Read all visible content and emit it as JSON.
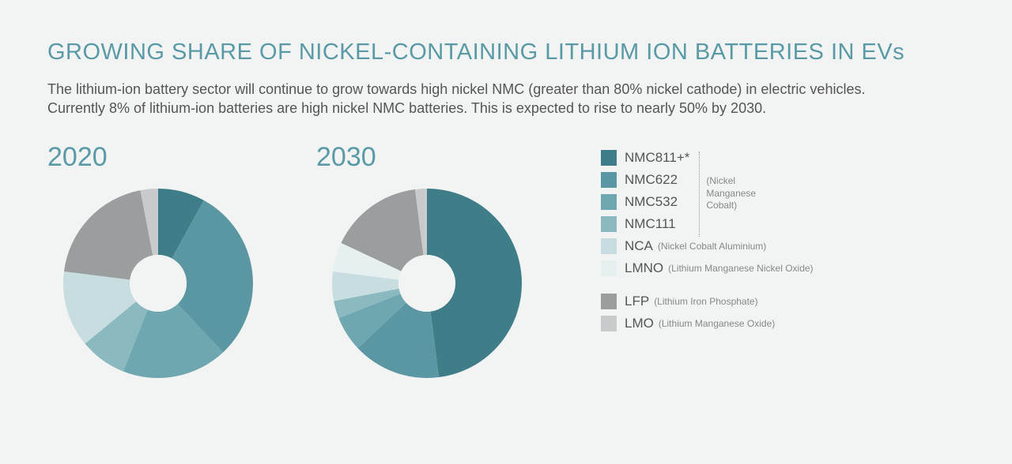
{
  "title": "GROWING SHARE OF NICKEL-CONTAINING LITHIUM ION BATTERIES IN EVs",
  "subtitle": "The lithium-ion battery sector will continue to grow towards high nickel NMC (greater than 80% nickel cathode) in electric vehicles. Currently 8% of lithium-ion batteries are high nickel NMC batteries. This is expected to rise to nearly 50% by 2030.",
  "background_color": "#f2f3f3",
  "title_color": "#5a9aa6",
  "text_color": "#555",
  "charts": [
    {
      "year": "2020",
      "type": "donut",
      "inner_radius_pct": 0.3,
      "start_angle_deg": 0,
      "slices": [
        {
          "label": "NMC811+*",
          "value": 8,
          "color": "#3f7d89"
        },
        {
          "label": "NMC622",
          "value": 30,
          "color": "#5a97a2"
        },
        {
          "label": "NMC532",
          "value": 18,
          "color": "#6ea7b0"
        },
        {
          "label": "NMC111",
          "value": 8,
          "color": "#8bb9c0"
        },
        {
          "label": "NCA",
          "value": 13,
          "color": "#c7dde0"
        },
        {
          "label": "LMNO",
          "value": 0,
          "color": "#e6f0f1"
        },
        {
          "label": "LFP",
          "value": 20,
          "color": "#9b9e9f"
        },
        {
          "label": "LMO",
          "value": 3,
          "color": "#c8cacb"
        }
      ]
    },
    {
      "year": "2030",
      "type": "donut",
      "inner_radius_pct": 0.3,
      "start_angle_deg": 0,
      "slices": [
        {
          "label": "NMC811+*",
          "value": 48,
          "color": "#3f7d89"
        },
        {
          "label": "NMC622",
          "value": 15,
          "color": "#5a97a2"
        },
        {
          "label": "NMC532",
          "value": 6,
          "color": "#6ea7b0"
        },
        {
          "label": "NMC111",
          "value": 3,
          "color": "#8bb9c0"
        },
        {
          "label": "NCA",
          "value": 5,
          "color": "#c7dde0"
        },
        {
          "label": "LMNO",
          "value": 5,
          "color": "#e6f0f1"
        },
        {
          "label": "LFP",
          "value": 16,
          "color": "#9b9e9f"
        },
        {
          "label": "LMO",
          "value": 2,
          "color": "#c8cacb"
        }
      ]
    }
  ],
  "legend": {
    "nmc_group_note": "(Nickel\nManganese\nCobalt)",
    "items": [
      {
        "label": "NMC811+*",
        "sub": "",
        "color": "#3f7d89",
        "group": "nmc"
      },
      {
        "label": "NMC622",
        "sub": "",
        "color": "#5a97a2",
        "group": "nmc"
      },
      {
        "label": "NMC532",
        "sub": "",
        "color": "#6ea7b0",
        "group": "nmc"
      },
      {
        "label": "NMC111",
        "sub": "",
        "color": "#8bb9c0",
        "group": "nmc"
      },
      {
        "label": "NCA",
        "sub": "(Nickel Cobalt Aluminium)",
        "color": "#c7dde0",
        "group": ""
      },
      {
        "label": "LMNO",
        "sub": "(Lithium Manganese Nickel Oxide)",
        "color": "#e6f0f1",
        "group": ""
      },
      {
        "gap": true
      },
      {
        "label": "LFP",
        "sub": "(Lithium Iron Phosphate)",
        "color": "#9b9e9f",
        "group": ""
      },
      {
        "label": "LMO",
        "sub": "(Lithium Manganese Oxide)",
        "color": "#c8cacb",
        "group": ""
      }
    ]
  }
}
